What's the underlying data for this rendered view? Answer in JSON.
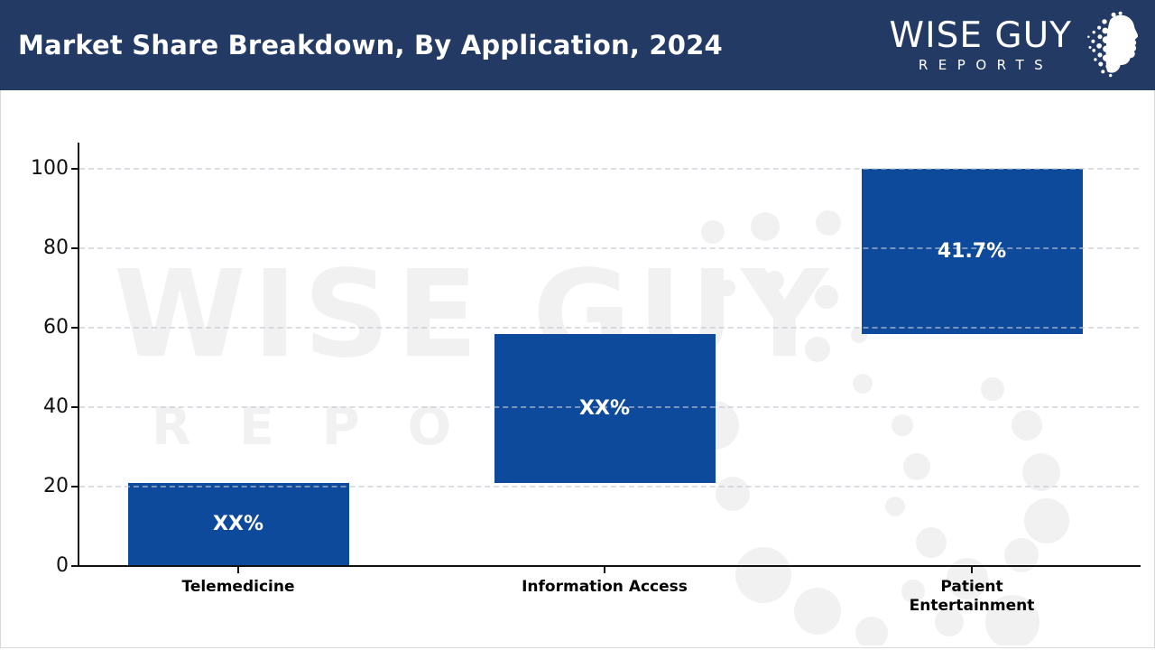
{
  "header": {
    "title": "Market Share Breakdown, By Application, 2024",
    "logo": {
      "line1": "WISE GUY",
      "line2": "REPORTS"
    }
  },
  "watermark": {
    "line1": "WISE GUY",
    "line2": "REPORTS"
  },
  "colors": {
    "header_bg": "#223a64",
    "bar": "#0d4a9c",
    "watermark_gray": "#f1f1f2",
    "axis": "#111111",
    "bar_label": "#ffffff"
  },
  "chart_data": {
    "type": "bar",
    "subtype": "waterfall",
    "title": "Market Share Breakdown, By Application, 2024",
    "categories": [
      "Telemedicine",
      "Information Access",
      "Patient\nEntertainment"
    ],
    "segments": [
      {
        "category": "Telemedicine",
        "start": 0,
        "end": 21,
        "label": "XX%"
      },
      {
        "category": "Information Access",
        "start": 21,
        "end": 58.3,
        "label": "XX%"
      },
      {
        "category": "Patient Entertainment",
        "start": 58.3,
        "end": 100,
        "label": "41.7%"
      }
    ],
    "y_ticks": [
      0,
      20,
      40,
      60,
      80,
      100
    ],
    "ylim": [
      0,
      107
    ],
    "xlabel": "",
    "ylabel": "",
    "grid": "horizontal-dashed",
    "legend": false
  }
}
